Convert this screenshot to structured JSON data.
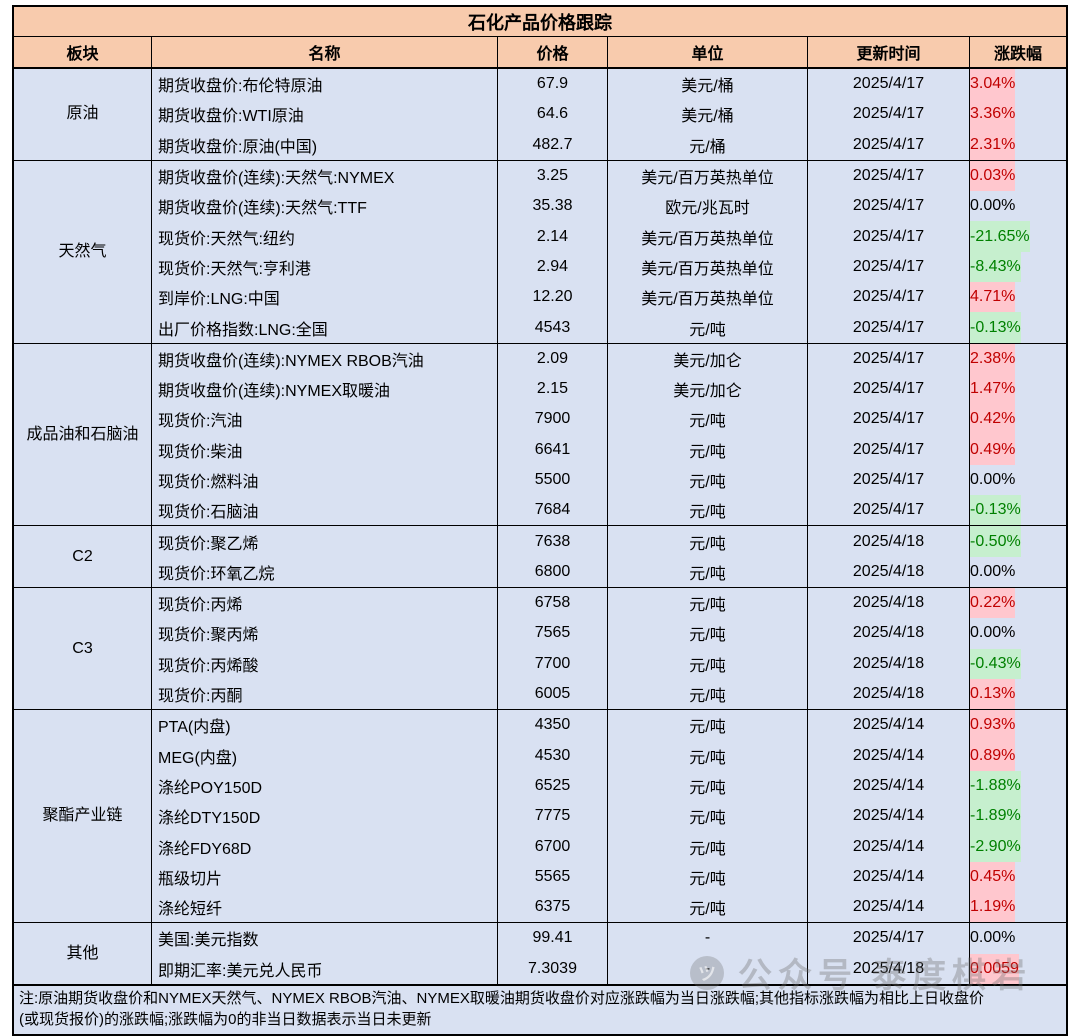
{
  "title": "石化产品价格跟踪",
  "columns": [
    "板块",
    "名称",
    "价格",
    "单位",
    "更新时间",
    "涨跌幅"
  ],
  "colors": {
    "header_bg": "#F8CBAD",
    "body_bg": "#D9E1F2",
    "up_bg": "#FFC7CE",
    "up_text": "#C00000",
    "down_bg": "#C6EFCE",
    "down_text": "#008000",
    "border": "#000000"
  },
  "sections": [
    {
      "sector": "原油",
      "rows": [
        {
          "name": "期货收盘价:布伦特原油",
          "price": "67.9",
          "unit": "美元/桶",
          "date": "2025/4/17",
          "change": "3.04%",
          "dir": "up"
        },
        {
          "name": "期货收盘价:WTI原油",
          "price": "64.6",
          "unit": "美元/桶",
          "date": "2025/4/17",
          "change": "3.36%",
          "dir": "up"
        },
        {
          "name": "期货收盘价:原油(中国)",
          "price": "482.7",
          "unit": "元/桶",
          "date": "2025/4/17",
          "change": "2.31%",
          "dir": "up"
        }
      ]
    },
    {
      "sector": "天然气",
      "rows": [
        {
          "name": "期货收盘价(连续):天然气:NYMEX",
          "price": "3.25",
          "unit": "美元/百万英热单位",
          "date": "2025/4/17",
          "change": "0.03%",
          "dir": "up"
        },
        {
          "name": "期货收盘价(连续):天然气:TTF",
          "price": "35.38",
          "unit": "欧元/兆瓦时",
          "date": "2025/4/17",
          "change": "0.00%",
          "dir": "flat"
        },
        {
          "name": "现货价:天然气:纽约",
          "price": "2.14",
          "unit": "美元/百万英热单位",
          "date": "2025/4/17",
          "change": "-21.65%",
          "dir": "down"
        },
        {
          "name": "现货价:天然气:亨利港",
          "price": "2.94",
          "unit": "美元/百万英热单位",
          "date": "2025/4/17",
          "change": "-8.43%",
          "dir": "down"
        },
        {
          "name": "到岸价:LNG:中国",
          "price": "12.20",
          "unit": "美元/百万英热单位",
          "date": "2025/4/17",
          "change": "4.71%",
          "dir": "up"
        },
        {
          "name": "出厂价格指数:LNG:全国",
          "price": "4543",
          "unit": "元/吨",
          "date": "2025/4/17",
          "change": "-0.13%",
          "dir": "down"
        }
      ]
    },
    {
      "sector": "成品油和石脑油",
      "rows": [
        {
          "name": "期货收盘价(连续):NYMEX RBOB汽油",
          "price": "2.09",
          "unit": "美元/加仑",
          "date": "2025/4/17",
          "change": "2.38%",
          "dir": "up"
        },
        {
          "name": "期货收盘价(连续):NYMEX取暖油",
          "price": "2.15",
          "unit": "美元/加仑",
          "date": "2025/4/17",
          "change": "1.47%",
          "dir": "up"
        },
        {
          "name": "现货价:汽油",
          "price": "7900",
          "unit": "元/吨",
          "date": "2025/4/17",
          "change": "0.42%",
          "dir": "up"
        },
        {
          "name": "现货价:柴油",
          "price": "6641",
          "unit": "元/吨",
          "date": "2025/4/17",
          "change": "0.49%",
          "dir": "up"
        },
        {
          "name": "现货价:燃料油",
          "price": "5500",
          "unit": "元/吨",
          "date": "2025/4/17",
          "change": "0.00%",
          "dir": "flat"
        },
        {
          "name": "现货价:石脑油",
          "price": "7684",
          "unit": "元/吨",
          "date": "2025/4/17",
          "change": "-0.13%",
          "dir": "down"
        }
      ]
    },
    {
      "sector": "C2",
      "rows": [
        {
          "name": "现货价:聚乙烯",
          "price": "7638",
          "unit": "元/吨",
          "date": "2025/4/18",
          "change": "-0.50%",
          "dir": "down"
        },
        {
          "name": "现货价:环氧乙烷",
          "price": "6800",
          "unit": "元/吨",
          "date": "2025/4/18",
          "change": "0.00%",
          "dir": "flat"
        }
      ]
    },
    {
      "sector": "C3",
      "rows": [
        {
          "name": "现货价:丙烯",
          "price": "6758",
          "unit": "元/吨",
          "date": "2025/4/18",
          "change": "0.22%",
          "dir": "up"
        },
        {
          "name": "现货价:聚丙烯",
          "price": "7565",
          "unit": "元/吨",
          "date": "2025/4/18",
          "change": "0.00%",
          "dir": "flat"
        },
        {
          "name": "现货价:丙烯酸",
          "price": "7700",
          "unit": "元/吨",
          "date": "2025/4/18",
          "change": "-0.43%",
          "dir": "down"
        },
        {
          "name": "现货价:丙酮",
          "price": "6005",
          "unit": "元/吨",
          "date": "2025/4/18",
          "change": "0.13%",
          "dir": "up"
        }
      ]
    },
    {
      "sector": "聚酯产业链",
      "rows": [
        {
          "name": "PTA(内盘)",
          "price": "4350",
          "unit": "元/吨",
          "date": "2025/4/14",
          "change": "0.93%",
          "dir": "up"
        },
        {
          "name": "MEG(内盘)",
          "price": "4530",
          "unit": "元/吨",
          "date": "2025/4/14",
          "change": "0.89%",
          "dir": "up"
        },
        {
          "name": "涤纶POY150D",
          "price": "6525",
          "unit": "元/吨",
          "date": "2025/4/14",
          "change": "-1.88%",
          "dir": "down"
        },
        {
          "name": "涤纶DTY150D",
          "price": "7775",
          "unit": "元/吨",
          "date": "2025/4/14",
          "change": "-1.89%",
          "dir": "down"
        },
        {
          "name": "涤纶FDY68D",
          "price": "6700",
          "unit": "元/吨",
          "date": "2025/4/14",
          "change": "-2.90%",
          "dir": "down"
        },
        {
          "name": "瓶级切片",
          "price": "5565",
          "unit": "元/吨",
          "date": "2025/4/14",
          "change": "0.45%",
          "dir": "up"
        },
        {
          "name": "涤纶短纤",
          "price": "6375",
          "unit": "元/吨",
          "date": "2025/4/14",
          "change": "1.19%",
          "dir": "up"
        }
      ]
    },
    {
      "sector": "其他",
      "rows": [
        {
          "name": "美国:美元指数",
          "price": "99.41",
          "unit": "-",
          "date": "2025/4/17",
          "change": "0.00%",
          "dir": "flat"
        },
        {
          "name": "即期汇率:美元兑人民币",
          "price": "7.3039",
          "unit": "-",
          "date": "2025/4/18",
          "change": "0.0059",
          "dir": "up"
        }
      ]
    }
  ],
  "note": {
    "line1": "注:原油期货收盘价和NYMEX天然气、NYMEX RBOB汽油、NYMEX取暖油期货收盘价对应涨跌幅为当日涨跌幅;其他指标涨跌幅为相比上日收盘价",
    "line2": "(或现货报价)的涨跌幅;涨跌幅为0的非当日数据表示当日未更新"
  },
  "watermark": {
    "label": "公众号",
    "name": "泰度棋岩"
  }
}
